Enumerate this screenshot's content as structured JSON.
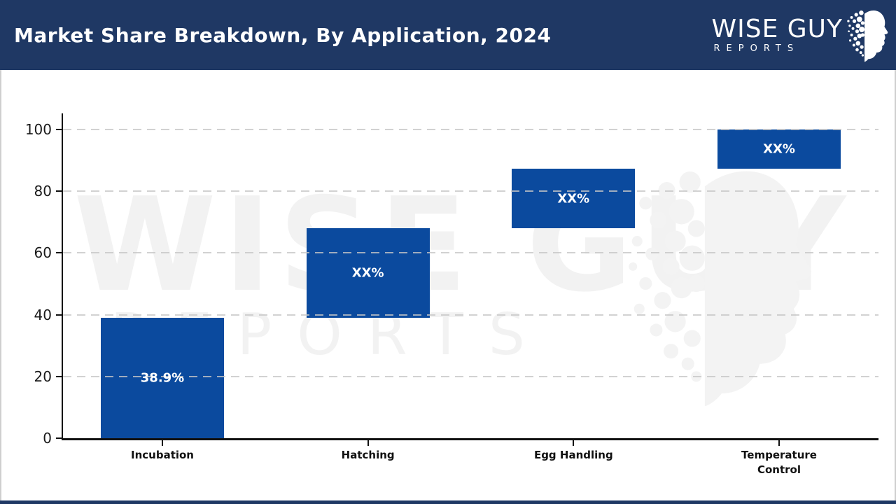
{
  "header": {
    "title": "Market Share Breakdown, By Application, 2024",
    "bg_color": "#1f3864",
    "logo": {
      "line1": "WISE GUY",
      "line2": "REPORTS"
    }
  },
  "watermark": {
    "line1": "WISE GUY",
    "line2": "REPORTS"
  },
  "chart_data": {
    "type": "bar",
    "subtype": "waterfall",
    "title": "",
    "xlabel": "",
    "ylabel": "",
    "categories": [
      "Incubation",
      "Hatching",
      "Egg Handling",
      "Temperature Control"
    ],
    "segments": [
      {
        "category": "Incubation",
        "start": 0,
        "end": 38.9,
        "label": "38.9%"
      },
      {
        "category": "Hatching",
        "start": 38.9,
        "end": 68.0,
        "label": "XX%"
      },
      {
        "category": "Egg Handling",
        "start": 68.0,
        "end": 87.3,
        "label": "XX%"
      },
      {
        "category": "Temperature Control",
        "start": 87.3,
        "end": 100,
        "label": "XX%"
      }
    ],
    "ylim": [
      0,
      100
    ],
    "yticks": [
      0,
      20,
      40,
      60,
      80,
      100
    ],
    "grid": "horizontal-dashed",
    "legend": "none",
    "bar_color": "#0b4a9e",
    "label_color": "#ffffff"
  }
}
